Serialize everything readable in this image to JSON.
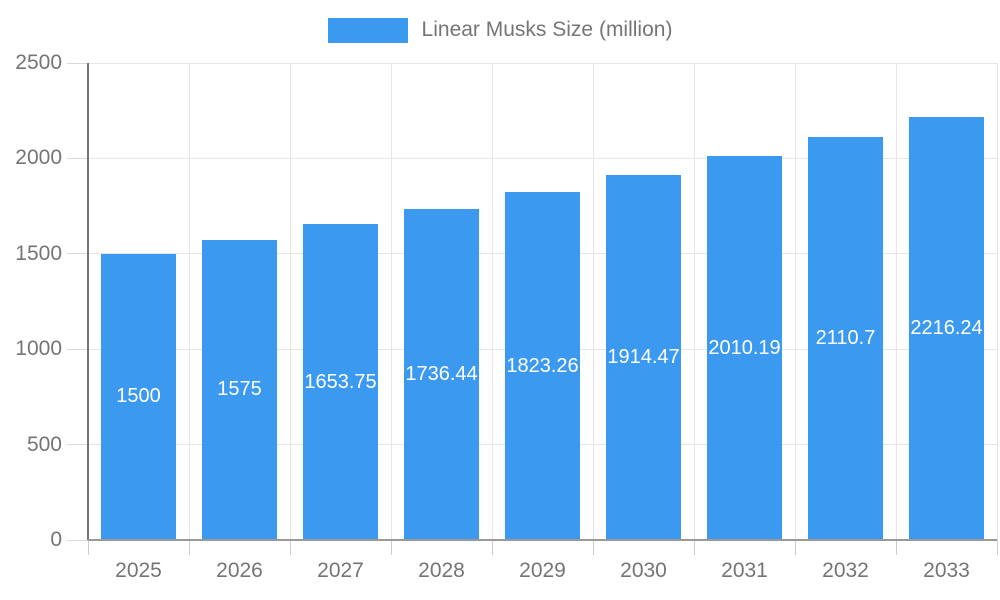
{
  "chart_data": {
    "type": "bar",
    "title": "",
    "series_name": "Linear Musks Size (million)",
    "categories": [
      "2025",
      "2026",
      "2027",
      "2028",
      "2029",
      "2030",
      "2031",
      "2032",
      "2033"
    ],
    "values": [
      1500,
      1575,
      1653.75,
      1736.44,
      1823.26,
      1914.47,
      2010.19,
      2110.7,
      2216.24
    ],
    "xlabel": "",
    "ylabel": "",
    "ylim": [
      0,
      2500
    ],
    "yticks": [
      0,
      500,
      1000,
      1500,
      2000,
      2500
    ],
    "grid": true,
    "legend_position": "top",
    "bar_color": "#3b99f0",
    "value_label_color": "#ffffff",
    "axis_text_color": "#757575",
    "grid_color": "#e6e6e6",
    "axis_line_color": "#757575",
    "baseline_color": "#999999",
    "tick_color": "#cccccc"
  }
}
